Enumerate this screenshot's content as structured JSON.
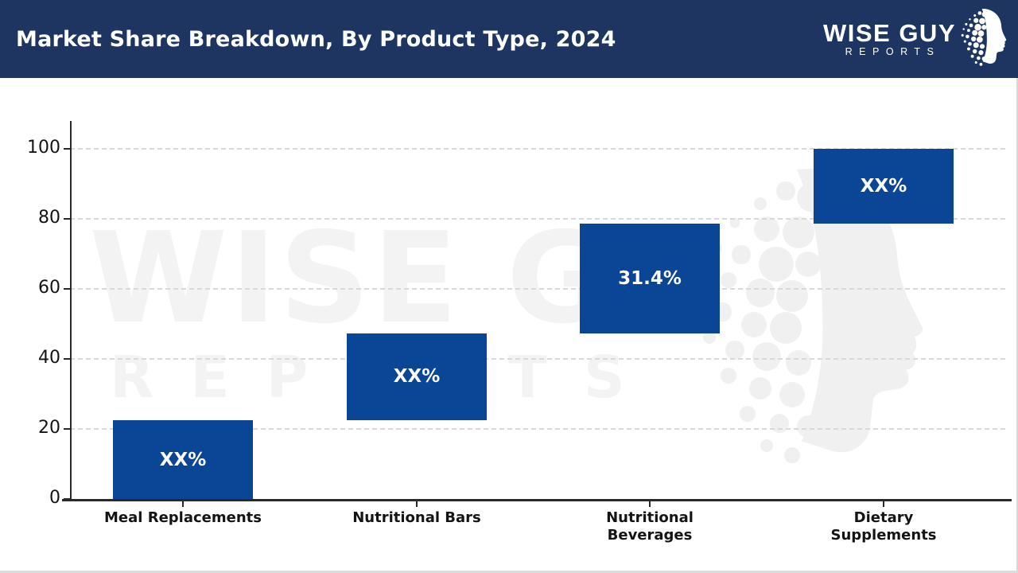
{
  "header": {
    "title": "Market Share Breakdown, By Product Type, 2024",
    "logo": {
      "name": "WISE GUY",
      "sub": "REPORTS"
    }
  },
  "watermark": {
    "line1": "WISE GU",
    "line2": "REPORTS"
  },
  "chart_data": {
    "type": "bar",
    "subtype": "waterfall",
    "title": "Market Share Breakdown, By Product Type, 2024",
    "categories": [
      [
        "Meal Replacements"
      ],
      [
        "Nutritional Bars"
      ],
      [
        "Nutritional",
        "Beverages"
      ],
      [
        "Dietary",
        "Supplements"
      ]
    ],
    "segments": [
      {
        "category": "Meal Replacements",
        "start": 0,
        "end": 22.5,
        "label": "XX%"
      },
      {
        "category": "Nutritional Bars",
        "start": 22.5,
        "end": 47.3,
        "label": "XX%"
      },
      {
        "category": "Nutritional Beverages",
        "start": 47.3,
        "end": 78.7,
        "label": "31.4%"
      },
      {
        "category": "Dietary Supplements",
        "start": 78.7,
        "end": 100,
        "label": "XX%"
      }
    ],
    "yticks": [
      0,
      20,
      40,
      60,
      80,
      100
    ],
    "ylim": [
      0,
      107
    ],
    "grid": "horizontal-dashed",
    "legend": "none",
    "bar_color": "#0b4596",
    "bar_label_color": "#ffffff"
  },
  "colors": {
    "header_bg": "#1e3561",
    "bar": "#0b4596",
    "grid": "#d9d9d9",
    "axis": "#2a2a2a",
    "watermark": "#f2f2f2"
  }
}
